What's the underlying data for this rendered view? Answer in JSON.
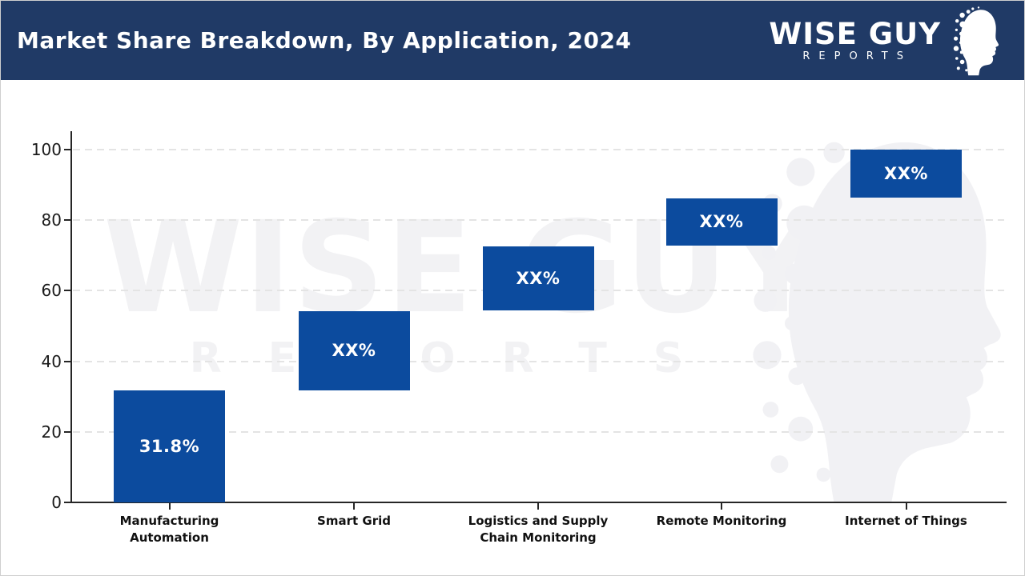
{
  "header": {
    "title": "Market Share Breakdown, By Application, 2024",
    "logo": {
      "line1": "WISE GUY",
      "line2": "REPORTS"
    }
  },
  "watermark": {
    "line1": "WISE GUY",
    "line2": "REPORTS"
  },
  "chart_data": {
    "type": "bar",
    "subtype": "floating-waterfall-segments",
    "title": "Market Share Breakdown, By Application, 2024",
    "categories": [
      "Manufacturing Automation",
      "Smart Grid",
      "Logistics and Supply Chain Monitoring",
      "Remote Monitoring",
      "Internet of Things"
    ],
    "bars": [
      {
        "category": "Manufacturing Automation",
        "label": "31.8%",
        "start": 0,
        "end": 31.8
      },
      {
        "category": "Smart Grid",
        "label": "XX%",
        "start": 31.8,
        "end": 54.2
      },
      {
        "category": "Logistics and Supply Chain Monitoring",
        "label": "XX%",
        "start": 54.5,
        "end": 72.5
      },
      {
        "category": "Remote Monitoring",
        "label": "XX%",
        "start": 72.8,
        "end": 86.2
      },
      {
        "category": "Internet of Things",
        "label": "XX%",
        "start": 86.5,
        "end": 100
      }
    ],
    "ylim": [
      0,
      100
    ],
    "yticks": [
      0,
      20,
      40,
      60,
      80,
      100
    ],
    "xlabel": "",
    "ylabel": "",
    "grid": "horizontal-dashed",
    "legend": "none",
    "bar_color": "#0c4b9e",
    "bar_label_color": "#ffffff"
  },
  "colors": {
    "header_bg": "#203a66",
    "bar": "#0c4b9e",
    "grid": "#e4e4e4",
    "axis": "#262626",
    "watermark": "#f2f2f4"
  }
}
